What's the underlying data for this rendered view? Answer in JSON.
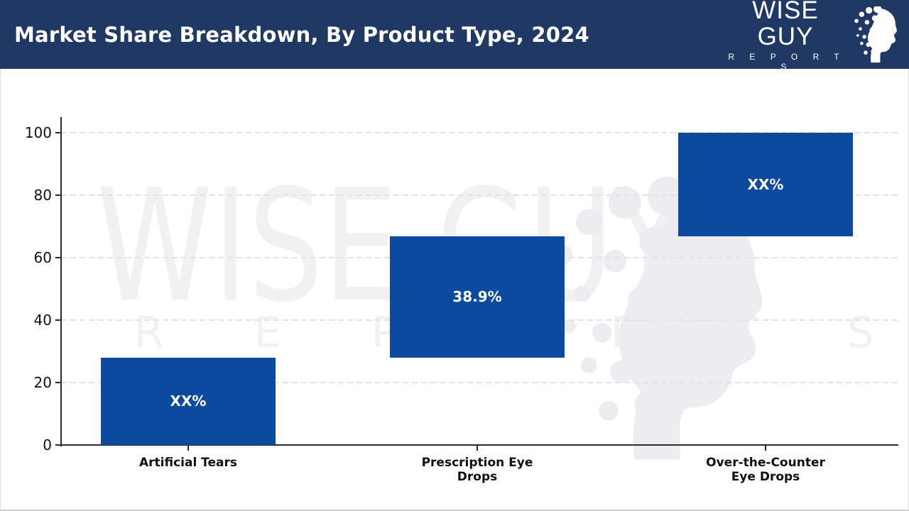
{
  "header": {
    "title": "Market Share Breakdown, By Product Type, 2024",
    "logo_line1": "WISE GUY",
    "logo_line2": "REPORTS"
  },
  "watermark": {
    "line1": "WISE GUY",
    "line2": "REPORTS"
  },
  "chart_data": {
    "type": "bar",
    "variant": "floating-segment-waterfall",
    "title": "Market Share Breakdown, By Product Type, 2024",
    "categories": [
      "Artificial Tears",
      "Prescription Eye Drops",
      "Over-the-Counter Eye Drops"
    ],
    "category_label_lines": [
      [
        "Artificial Tears"
      ],
      [
        "Prescription Eye",
        "Drops"
      ],
      [
        "Over-the-Counter",
        "Eye Drops"
      ]
    ],
    "segments": [
      {
        "category": "Artificial Tears",
        "from": 0,
        "to": 28,
        "label": "XX%"
      },
      {
        "category": "Prescription Eye Drops",
        "from": 28,
        "to": 66.9,
        "label": "38.9%"
      },
      {
        "category": "Over-the-Counter Eye Drops",
        "from": 66.9,
        "to": 100,
        "label": "XX%"
      }
    ],
    "bar_labels": [
      "XX%",
      "38.9%",
      "XX%"
    ],
    "ylim": [
      0,
      100
    ],
    "yticks": [
      0,
      20,
      40,
      60,
      80,
      100
    ],
    "xlabel": "",
    "ylabel": "",
    "grid": "horizontal-dashed",
    "legend": "none",
    "colors": {
      "bar": "#0b4a9e",
      "header_bg": "#1f3864",
      "grid": "#e3e3e3",
      "axis": "#2b2b2b",
      "bar_label_text": "#ffffff",
      "watermark": "#f1f1f4"
    }
  }
}
